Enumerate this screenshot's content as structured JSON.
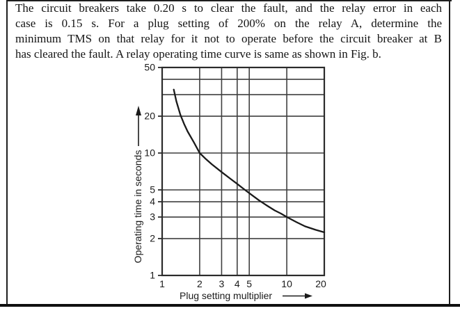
{
  "document": {
    "problem_statement_lines": [
      "The circuit breakers take 0.20 s to clear the fault, and the relay error in each",
      "case is 0.15 s. For a plug setting of 200% on the relay A, determine the",
      "minimum TMS on that relay for it not to operate before the circuit breaker at B",
      "has cleared the fault. A relay operating time curve is same as shown in Fig. b."
    ]
  },
  "chart_data": {
    "type": "line",
    "title": "",
    "xlabel": "Plug setting multiplier",
    "ylabel": "Operating time in seconds",
    "x_scale": "log",
    "y_scale": "log",
    "xlim": [
      1,
      20
    ],
    "ylim": [
      1,
      50
    ],
    "x_tick_labels": [
      1,
      2,
      3,
      4,
      5,
      10,
      20
    ],
    "y_tick_labels": [
      1,
      2,
      3,
      4,
      5,
      10,
      20,
      50
    ],
    "x_gridlines": [
      2,
      3,
      4,
      5,
      10
    ],
    "y_gridlines": [
      2,
      3,
      4,
      5,
      10,
      20,
      30,
      40
    ],
    "grid": true,
    "legend": "none",
    "series": [
      {
        "name": "relay operating time curve",
        "points": [
          [
            1.24,
            33
          ],
          [
            1.3,
            26.5
          ],
          [
            1.4,
            20.5
          ],
          [
            1.5,
            17.3
          ],
          [
            1.6,
            15.0
          ],
          [
            1.8,
            12.2
          ],
          [
            2,
            10
          ],
          [
            2.25,
            8.9
          ],
          [
            2.5,
            8.1
          ],
          [
            3,
            7.0
          ],
          [
            3.5,
            6.2
          ],
          [
            4,
            5.6
          ],
          [
            4.5,
            5.1
          ],
          [
            5,
            4.7
          ],
          [
            6,
            4.1
          ],
          [
            7,
            3.7
          ],
          [
            8,
            3.4
          ],
          [
            9,
            3.2
          ],
          [
            10,
            3.0
          ],
          [
            12,
            2.72
          ],
          [
            14,
            2.52
          ],
          [
            17,
            2.36
          ],
          [
            20,
            2.25
          ]
        ]
      }
    ],
    "colors": {
      "curve": "#1a1a1a",
      "grid": "#3f3f3f",
      "axis": "#2b2b2b",
      "text": "#1a1a1a"
    }
  }
}
